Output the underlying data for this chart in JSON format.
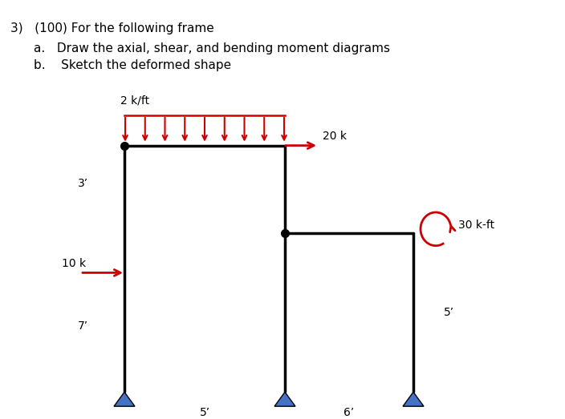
{
  "title_line1": "3)   (100) For the following frame",
  "title_line2a": "a.   Draw the axial, shear, and bending moment diagrams",
  "title_line2b": "b.    Sketch the deformed shape",
  "bg_color": "#ffffff",
  "frame_color": "#000000",
  "load_color": "#cc0000",
  "support_color": "#4472c4",
  "node_color": "#000000",
  "label_2kft": "2 k/ft",
  "label_20k": "20 k",
  "label_10k": "10 k",
  "label_30kft": "30 k-ft",
  "label_3ft": "3’",
  "label_7ft": "7’",
  "label_5ft_bot": "5’",
  "label_6ft": "6’",
  "label_5ft_right": "5’",
  "n_dist_arrows": 9,
  "frame_linewidth": 2.5
}
